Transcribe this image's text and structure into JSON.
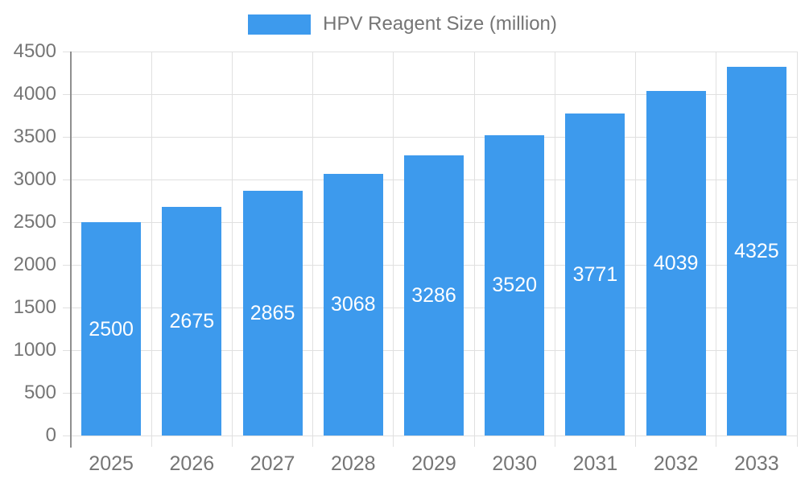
{
  "legend": {
    "label": "HPV Reagent Size (million)",
    "swatch_color": "#3D9AED"
  },
  "chart_data": {
    "type": "bar",
    "title": "HPV Reagent Size (million)",
    "categories": [
      "2025",
      "2026",
      "2027",
      "2028",
      "2029",
      "2030",
      "2031",
      "2032",
      "2033"
    ],
    "values": [
      2500,
      2675,
      2865,
      3068,
      3286,
      3520,
      3771,
      4039,
      4325
    ],
    "xlabel": "",
    "ylabel": "",
    "ylim": [
      0,
      4500
    ],
    "ytick_step": 500,
    "grid": true,
    "legend_position": "top",
    "colors": {
      "bar": "#3D9AED",
      "bar_label": "#ffffff",
      "axis_text": "#757575",
      "gridline": "#e0e0e0",
      "axis_line": "#8f8f8f"
    }
  }
}
